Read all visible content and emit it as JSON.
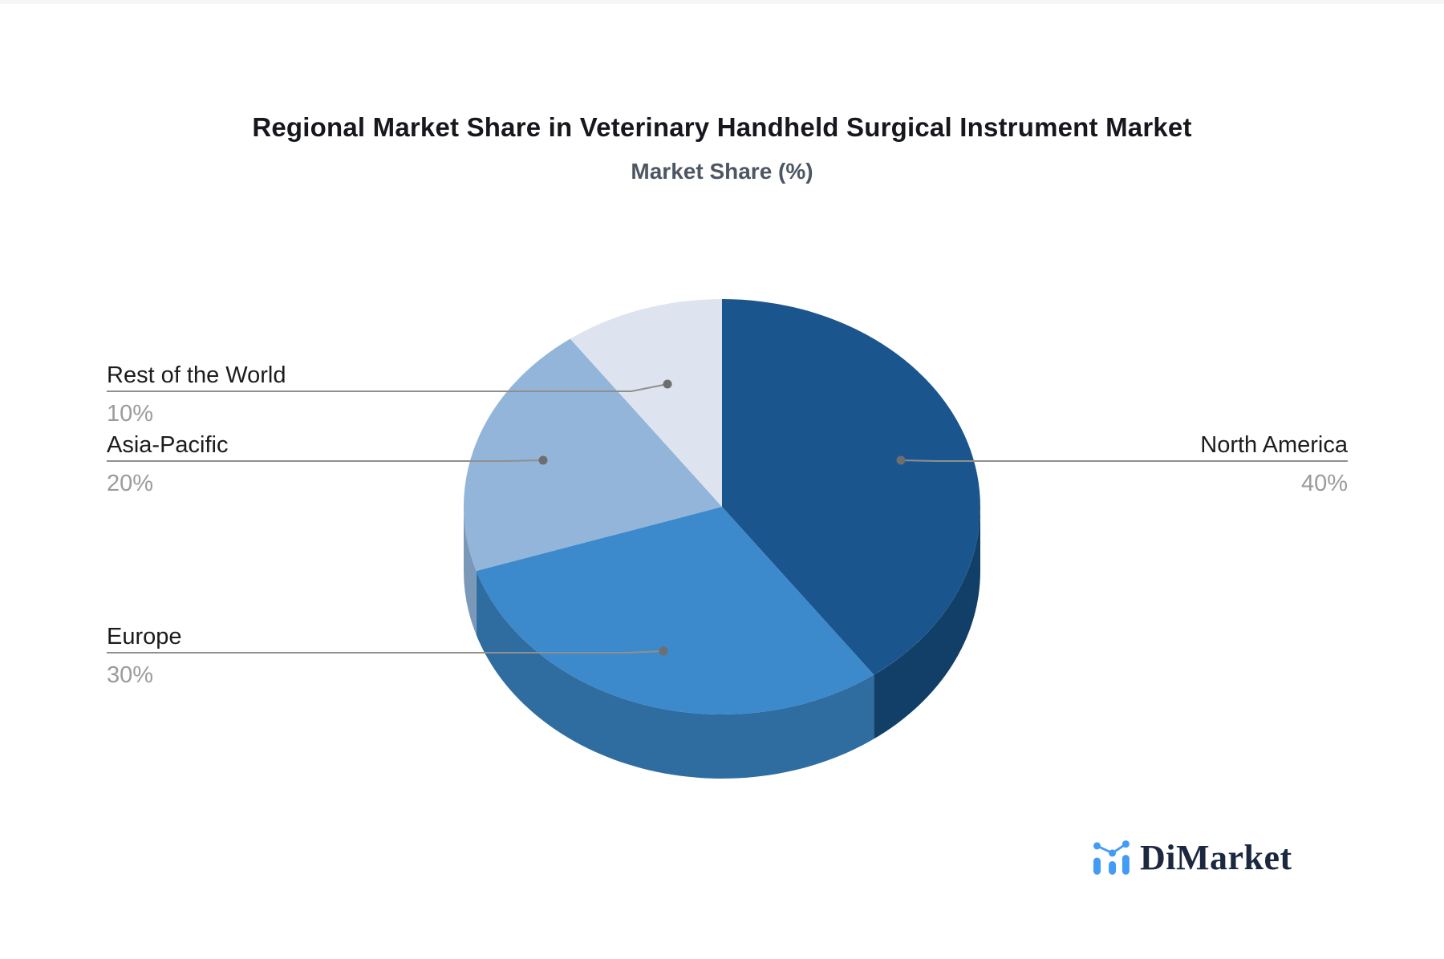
{
  "chart_data": {
    "type": "pie",
    "style": "3d",
    "title": "Regional Market Share in Veterinary Handheld Surgical Instrument Market",
    "subtitle": "Market Share (%)",
    "unit": "%",
    "direction": "clockwise",
    "start_angle_deg": 0,
    "legend_position": "none",
    "labels_style": "outside-with-connector-lines",
    "series": [
      {
        "name": "North America",
        "value": 40,
        "display_value": "40%",
        "color": "#1a568d",
        "side_color": "#123f68"
      },
      {
        "name": "Europe",
        "value": 30,
        "display_value": "30%",
        "color": "#3c89cb",
        "side_color": "#2f6da1"
      },
      {
        "name": "Asia-Pacific",
        "value": 20,
        "display_value": "20%",
        "color": "#93b5d9",
        "side_color": "#7a99b8"
      },
      {
        "name": "Rest of the World",
        "value": 10,
        "display_value": "10%",
        "color": "#dee4ef",
        "side_color": "#c2cbda"
      }
    ],
    "connector_color": "#8f8f8f",
    "connector_dot_color": "#6e6e6e",
    "label_name_color": "#1c1c1c",
    "label_value_color": "#9b9b9b",
    "title_color": "#16181d",
    "subtitle_color": "#4d5663"
  },
  "branding": {
    "logo_text": "DiMarket",
    "logo_icon": "bar-line-chart-icon",
    "logo_text_color": "#1b2840",
    "logo_icon_color": "#429bf4"
  }
}
